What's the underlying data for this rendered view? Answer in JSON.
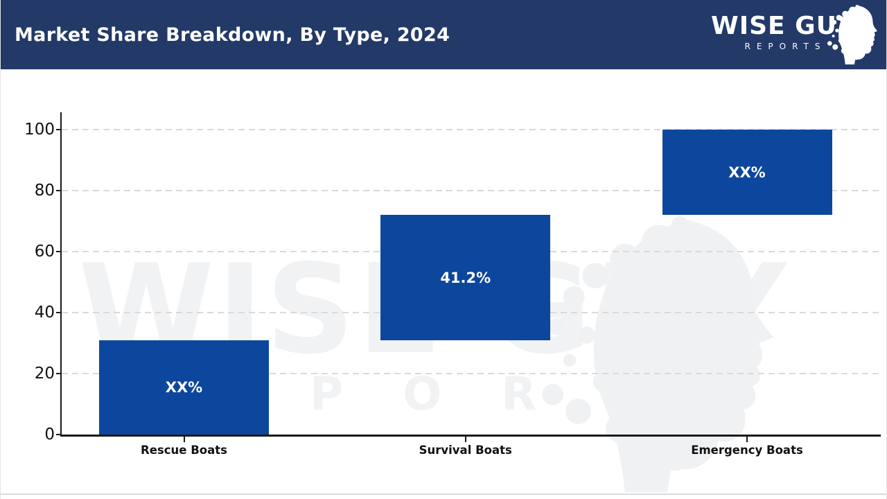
{
  "header": {
    "title": "Market Share Breakdown, By Type, 2024",
    "bg_color": "#233967",
    "logo": {
      "line1": "WISE GUY",
      "line2": "REPORTS"
    }
  },
  "watermark": {
    "line1": "WISE GUY",
    "line2": "REPORTS"
  },
  "chart_data": {
    "type": "bar",
    "subtype": "floating-waterfall",
    "title": "Market Share Breakdown, By Type, 2024",
    "categories": [
      "Rescue Boats",
      "Survival Boats",
      "Emergency Boats"
    ],
    "series": [
      {
        "name": "Market Share (%)",
        "segments": [
          {
            "category": "Rescue Boats",
            "start": 0,
            "end": 30.8,
            "value": 30.8,
            "label": "XX%"
          },
          {
            "category": "Survival Boats",
            "start": 30.8,
            "end": 72.0,
            "value": 41.2,
            "label": "41.2%"
          },
          {
            "category": "Emergency Boats",
            "start": 72.0,
            "end": 100,
            "value": 28.0,
            "label": "XX%"
          }
        ]
      }
    ],
    "xlabel": "",
    "ylabel": "",
    "ylim": [
      0,
      105
    ],
    "yticks": [
      0,
      20,
      40,
      60,
      80,
      100
    ],
    "grid": "horizontal-dashed",
    "legend": "none",
    "bar_color": "#0c479d",
    "bar_label_color": "#ffffff",
    "axis_color": "#1a1a1a",
    "grid_color": "#d9d9d9"
  }
}
